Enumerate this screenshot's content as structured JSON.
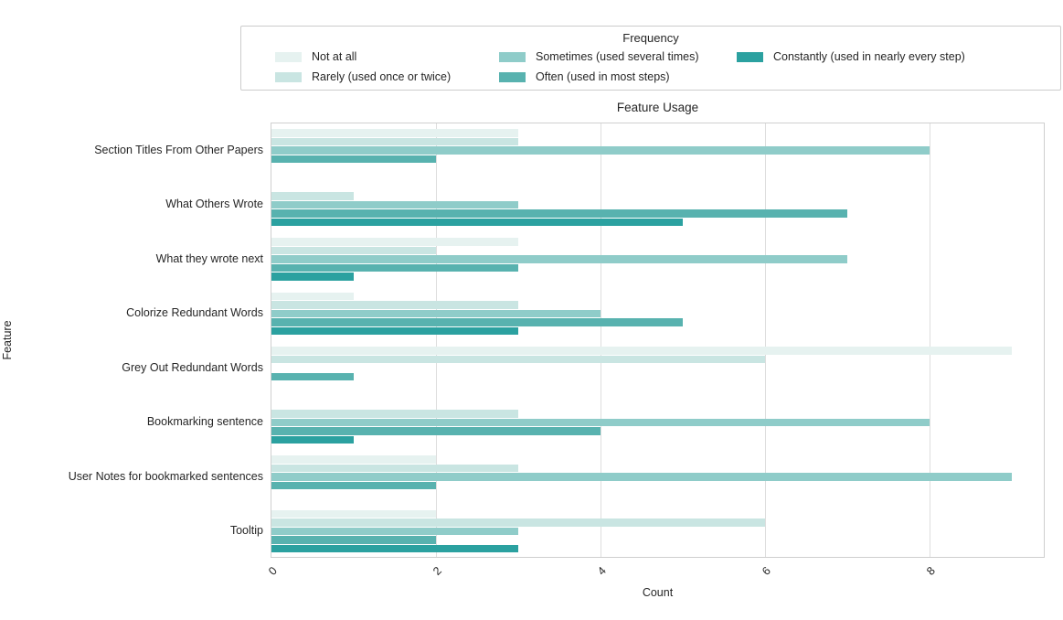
{
  "chart_data": {
    "type": "bar",
    "orientation": "horizontal",
    "title": "Feature Usage",
    "xlabel": "Count",
    "ylabel": "Feature",
    "legend_title": "Frequency",
    "legend_position": "top",
    "grid": "vertical-only",
    "categories": [
      "Section Titles From Other Papers",
      "What Others Wrote",
      "What they wrote next",
      "Colorize Redundant Words",
      "Grey Out Redundant Words",
      "Bookmarking sentence",
      "User Notes for bookmarked sentences",
      "Tooltip"
    ],
    "series": [
      {
        "name": "Not at all",
        "color": "#e6f2f0",
        "values": [
          3,
          0,
          3,
          1,
          9,
          0,
          2,
          2
        ]
      },
      {
        "name": "Rarely (used once or twice)",
        "color": "#c9e5e2",
        "values": [
          3,
          1,
          2,
          3,
          6,
          3,
          3,
          6
        ]
      },
      {
        "name": "Sometimes (used several times)",
        "color": "#8fccc9",
        "values": [
          8,
          3,
          7,
          4,
          0,
          8,
          9,
          3
        ]
      },
      {
        "name": "Often (used in most steps)",
        "color": "#58b2af",
        "values": [
          2,
          7,
          3,
          5,
          1,
          4,
          2,
          2
        ]
      },
      {
        "name": "Constantly (used in nearly every step)",
        "color": "#2ba1a0",
        "values": [
          0,
          5,
          1,
          3,
          0,
          1,
          0,
          3
        ]
      }
    ],
    "xticks": [
      0,
      2,
      4,
      6,
      8
    ],
    "xlim": [
      0,
      9.4
    ]
  }
}
